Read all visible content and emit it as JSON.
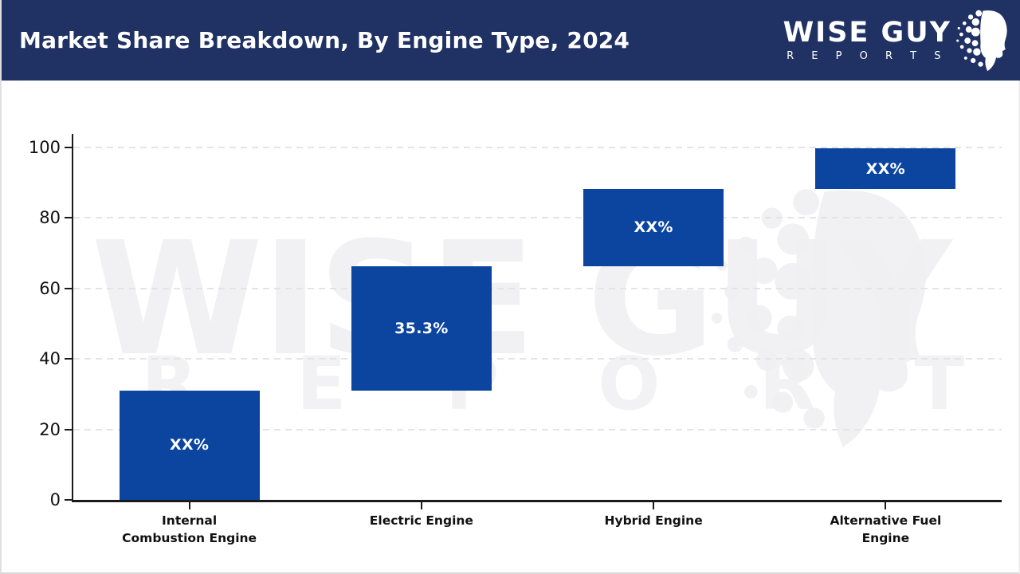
{
  "header": {
    "title": "Market Share Breakdown, By Engine Type, 2024",
    "logo": {
      "line1": "WISE GUY",
      "line2": "R E P O R T S"
    }
  },
  "watermark": {
    "line1": "WISE GUY",
    "line2": "R E P O R T S"
  },
  "colors": {
    "header_bg": "#203263",
    "bar_fill": "#0b45a0",
    "bar_label_text": "#ffffff",
    "grid_line": "#e4e4e6",
    "axis_line": "#1a1a1a",
    "watermark_gray": "#f1f1f4"
  },
  "chart_data": {
    "type": "bar",
    "subtype": "waterfall",
    "title": "Market Share Breakdown, By Engine Type, 2024",
    "categories": [
      [
        "Internal",
        "Combustion Engine"
      ],
      [
        "Electric Engine"
      ],
      [
        "Hybrid Engine"
      ],
      [
        "Alternative Fuel",
        "Engine"
      ]
    ],
    "bars": [
      {
        "label": "XX%",
        "start": 0,
        "end": 31
      },
      {
        "label": "35.3%",
        "start": 31,
        "end": 66.3
      },
      {
        "label": "XX%",
        "start": 66.3,
        "end": 88.2
      },
      {
        "label": "XX%",
        "start": 88.2,
        "end": 99.7
      }
    ],
    "yticks": [
      0,
      20,
      40,
      60,
      80,
      100
    ],
    "ylim": [
      0,
      103.8
    ],
    "xlabel": "",
    "ylabel": "",
    "grid": "horizontal-dashed",
    "legend": "none"
  }
}
